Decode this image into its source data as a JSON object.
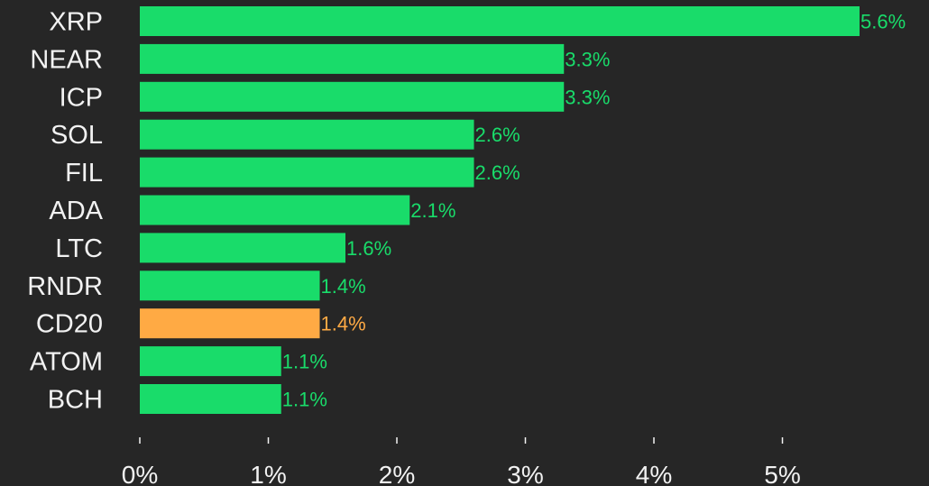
{
  "chart_data": {
    "type": "bar",
    "orientation": "horizontal",
    "title": "",
    "xlabel": "",
    "ylabel": "",
    "categories": [
      "XRP",
      "NEAR",
      "ICP",
      "SOL",
      "FIL",
      "ADA",
      "LTC",
      "RNDR",
      "CD20",
      "ATOM",
      "BCH"
    ],
    "values": [
      5.6,
      3.3,
      3.3,
      2.6,
      2.6,
      2.1,
      1.6,
      1.4,
      1.4,
      1.1,
      1.1
    ],
    "value_labels": [
      "5.6%",
      "3.3%",
      "3.3%",
      "2.6%",
      "2.6%",
      "2.1%",
      "1.6%",
      "1.4%",
      "1.4%",
      "1.1%",
      "1.1%"
    ],
    "highlight_category": "CD20",
    "xlim": [
      0,
      5.6
    ],
    "x_ticks": [
      0,
      1,
      2,
      3,
      4,
      5
    ],
    "x_tick_labels": [
      "0%",
      "1%",
      "2%",
      "3%",
      "4%",
      "5%"
    ],
    "grid": false,
    "legend": "none",
    "colors": {
      "background": "#262626",
      "bar": "#19dc6a",
      "highlight_bar": "#ffaa44",
      "value_label": "#19dc6a",
      "highlight_value_label": "#ffaa44",
      "text": "#f2f2f2",
      "axis": "#f2f2f2"
    }
  }
}
